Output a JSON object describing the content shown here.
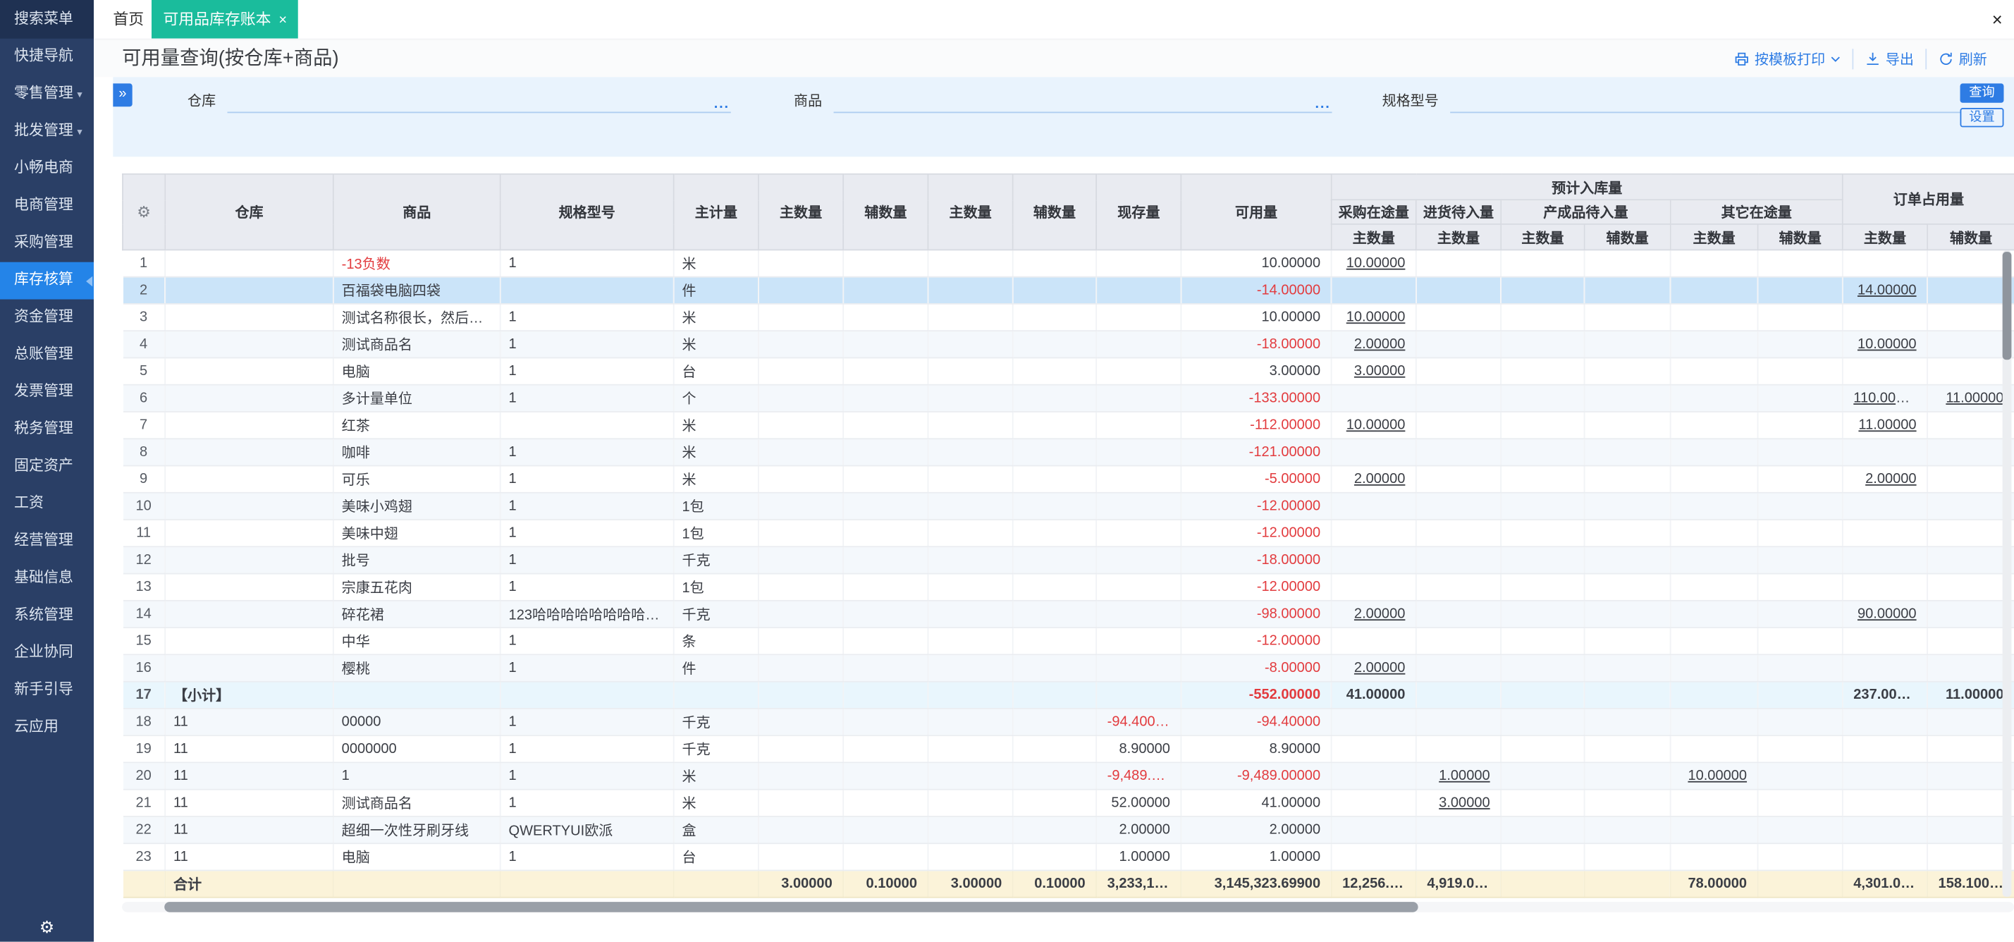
{
  "colors": {
    "accent": "#2e7ce4",
    "tab_active": "#1abc9c",
    "negative": "#e23b3e",
    "filter_bg": "#e9f3fd",
    "sidebar_bg": "#2a3f66",
    "sidebar_active": "#2484e8",
    "selected_row": "#cbe4f9",
    "subtotal_row": "#e9f6fd",
    "total_row": "#fbf3d9"
  },
  "sidebar": {
    "gear_icon": "⚙",
    "items": [
      {
        "label": "搜索菜单",
        "type": "search"
      },
      {
        "label": "快捷导航"
      },
      {
        "label": "零售管理",
        "arrow": true
      },
      {
        "label": "批发管理",
        "arrow": true
      },
      {
        "label": "小畅电商"
      },
      {
        "label": "电商管理"
      },
      {
        "label": "采购管理"
      },
      {
        "label": "库存核算",
        "active": true
      },
      {
        "label": "资金管理"
      },
      {
        "label": "总账管理"
      },
      {
        "label": "发票管理"
      },
      {
        "label": "税务管理"
      },
      {
        "label": "固定资产"
      },
      {
        "label": "工资"
      },
      {
        "label": "经营管理"
      },
      {
        "label": "基础信息"
      },
      {
        "label": "系统管理"
      },
      {
        "label": "企业协同"
      },
      {
        "label": "新手引导"
      },
      {
        "label": "云应用"
      }
    ]
  },
  "tabs": {
    "home": "首页",
    "active_tab": "可用品库存账本",
    "close_icon": "×"
  },
  "header": {
    "title": "可用量查询(按仓库+商品)",
    "print_label": "按模板打印",
    "export_label": "导出",
    "refresh_label": "刷新"
  },
  "filters": {
    "expand_icon": "»",
    "warehouse_label": "仓库",
    "warehouse_value": "",
    "product_label": "商品",
    "product_value": "",
    "spec_label": "规格型号",
    "spec_value": "",
    "picker_dots": "...",
    "query_button": "查询",
    "settings_button": "设置"
  },
  "table": {
    "header": {
      "gear_icon": "⚙",
      "warehouse": "仓库",
      "product": "商品",
      "spec": "规格型号",
      "unit": "主计量",
      "main_qty": "主数量",
      "aux_qty": "辅数量",
      "stock": "现存量",
      "available": "可用量",
      "expected_in": "预计入库量",
      "purchase_transit": "采购在途量",
      "incoming_pending": "进货待入量",
      "finished_pending": "产成品待入量",
      "other_transit": "其它在途量",
      "order_occupied": "订单占用量"
    },
    "columns": [
      {
        "key": "num",
        "align": "center"
      },
      {
        "key": "warehouse",
        "align": "left"
      },
      {
        "key": "product",
        "align": "left"
      },
      {
        "key": "spec",
        "align": "left"
      },
      {
        "key": "unit",
        "align": "left"
      },
      {
        "key": "main_qty",
        "align": "right"
      },
      {
        "key": "aux_qty",
        "align": "right"
      },
      {
        "key": "main_qty2",
        "align": "right"
      },
      {
        "key": "aux_qty2",
        "align": "right"
      },
      {
        "key": "stock",
        "align": "right"
      },
      {
        "key": "available",
        "align": "right"
      },
      {
        "key": "purchase_transit",
        "align": "right"
      },
      {
        "key": "incoming_pending",
        "align": "right"
      },
      {
        "key": "finished_main",
        "align": "right"
      },
      {
        "key": "finished_aux",
        "align": "right"
      },
      {
        "key": "other_main",
        "align": "right"
      },
      {
        "key": "other_aux",
        "align": "right"
      },
      {
        "key": "order_main",
        "align": "right"
      },
      {
        "key": "order_aux",
        "align": "right"
      }
    ],
    "rows": [
      {
        "num": "1",
        "product": {
          "v": "-13负数",
          "c": "neg"
        },
        "spec": "1",
        "unit": "米",
        "available": "10.00000",
        "purchase_transit": {
          "v": "10.00000",
          "c": "link"
        }
      },
      {
        "num": "2",
        "selected": true,
        "product": "百福袋电脑四袋",
        "unit": "件",
        "available": {
          "v": "-14.00000",
          "c": "neg"
        },
        "order_main": {
          "v": "14.00000",
          "c": "link"
        }
      },
      {
        "num": "3",
        "product": "测试名称很长，然后截断有没...",
        "spec": "1",
        "unit": "米",
        "available": "10.00000",
        "purchase_transit": {
          "v": "10.00000",
          "c": "link"
        }
      },
      {
        "num": "4",
        "product": "测试商品名",
        "spec": "1",
        "unit": "米",
        "available": {
          "v": "-18.00000",
          "c": "neg"
        },
        "purchase_transit": {
          "v": "2.00000",
          "c": "link"
        },
        "order_main": {
          "v": "10.00000",
          "c": "link"
        }
      },
      {
        "num": "5",
        "product": "电脑",
        "spec": "1",
        "unit": "台",
        "available": "3.00000",
        "purchase_transit": {
          "v": "3.00000",
          "c": "link"
        }
      },
      {
        "num": "6",
        "product": "多计量单位",
        "spec": "1",
        "unit": "个",
        "available": {
          "v": "-133.00000",
          "c": "neg"
        },
        "order_main": {
          "v": "110.00000",
          "c": "link"
        },
        "order_aux": {
          "v": "11.00000",
          "c": "link"
        }
      },
      {
        "num": "7",
        "product": "红茶",
        "unit": "米",
        "available": {
          "v": "-112.00000",
          "c": "neg"
        },
        "purchase_transit": {
          "v": "10.00000",
          "c": "link"
        },
        "order_main": {
          "v": "11.00000",
          "c": "link"
        }
      },
      {
        "num": "8",
        "product": "咖啡",
        "spec": "1",
        "unit": "米",
        "available": {
          "v": "-121.00000",
          "c": "neg"
        }
      },
      {
        "num": "9",
        "product": "可乐",
        "spec": "1",
        "unit": "米",
        "available": {
          "v": "-5.00000",
          "c": "neg"
        },
        "purchase_transit": {
          "v": "2.00000",
          "c": "link"
        },
        "order_main": {
          "v": "2.00000",
          "c": "link"
        }
      },
      {
        "num": "10",
        "product": "美味小鸡翅",
        "spec": "1",
        "unit": "1包",
        "available": {
          "v": "-12.00000",
          "c": "neg"
        }
      },
      {
        "num": "11",
        "product": "美味中翅",
        "spec": "1",
        "unit": "1包",
        "available": {
          "v": "-12.00000",
          "c": "neg"
        }
      },
      {
        "num": "12",
        "product": "批号",
        "spec": "1",
        "unit": "千克",
        "available": {
          "v": "-18.00000",
          "c": "neg"
        }
      },
      {
        "num": "13",
        "product": "宗康五花肉",
        "spec": "1",
        "unit": "1包",
        "available": {
          "v": "-12.00000",
          "c": "neg"
        }
      },
      {
        "num": "14",
        "product": "碎花裙",
        "spec": "123哈哈哈哈哈哈哈哈哈哈哈...",
        "unit": "千克",
        "available": {
          "v": "-98.00000",
          "c": "neg"
        },
        "purchase_transit": {
          "v": "2.00000",
          "c": "link"
        },
        "order_main": {
          "v": "90.00000",
          "c": "link"
        }
      },
      {
        "num": "15",
        "product": "中华",
        "spec": "1",
        "unit": "条",
        "available": {
          "v": "-12.00000",
          "c": "neg"
        }
      },
      {
        "num": "16",
        "product": "樱桃",
        "spec": "1",
        "unit": "件",
        "available": {
          "v": "-8.00000",
          "c": "neg"
        },
        "purchase_transit": {
          "v": "2.00000",
          "c": "link"
        }
      },
      {
        "num": "17",
        "subtotal": true,
        "warehouse": "【小计】",
        "available": {
          "v": "-552.00000",
          "c": "neg"
        },
        "purchase_transit": "41.00000",
        "order_main": "237.00000",
        "order_aux": "11.00000"
      },
      {
        "num": "18",
        "warehouse": "11",
        "product": "00000",
        "spec": "1",
        "unit": "千克",
        "stock": {
          "v": "-94.40000",
          "c": "neg"
        },
        "available": {
          "v": "-94.40000",
          "c": "neg"
        }
      },
      {
        "num": "19",
        "warehouse": "11",
        "product": "0000000",
        "spec": "1",
        "unit": "千克",
        "stock": "8.90000",
        "available": "8.90000"
      },
      {
        "num": "20",
        "warehouse": "11",
        "product": "1",
        "spec": "1",
        "unit": "米",
        "stock": {
          "v": "-9,489.000...",
          "c": "neg"
        },
        "available": {
          "v": "-9,489.00000",
          "c": "neg"
        },
        "incoming_pending": {
          "v": "1.00000",
          "c": "link"
        },
        "other_main": {
          "v": "10.00000",
          "c": "link"
        }
      },
      {
        "num": "21",
        "warehouse": "11",
        "product": "测试商品名",
        "spec": "1",
        "unit": "米",
        "stock": "52.00000",
        "available": "41.00000",
        "incoming_pending": {
          "v": "3.00000",
          "c": "link"
        }
      },
      {
        "num": "22",
        "warehouse": "11",
        "product": "超细一次性牙刷牙线",
        "spec": "QWERTYUI欧派",
        "unit": "盒",
        "stock": "2.00000",
        "available": "2.00000"
      },
      {
        "num": "23",
        "warehouse": "11",
        "product": "电脑",
        "spec": "1",
        "unit": "台",
        "stock": "1.00000",
        "available": "1.00000"
      }
    ],
    "total_row": {
      "warehouse": "合计",
      "main_qty": "3.00000",
      "aux_qty": "0.10000",
      "main_qty2": "3.00000",
      "aux_qty2": "0.10000",
      "stock": "3,233,105...",
      "available": "3,145,323.69900",
      "purchase_transit": "12,256.00...",
      "incoming_pending": "4,919.00000",
      "other_main": "78.00000",
      "order_main": "4,301.00000",
      "order_aux": "158.10000"
    }
  }
}
